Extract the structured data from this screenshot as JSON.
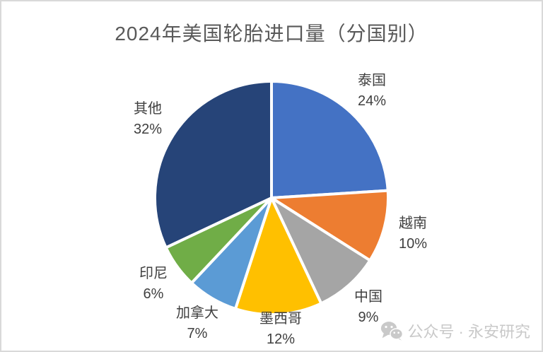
{
  "title": "2024年美国轮胎进口量（分国别）",
  "watermark": {
    "icon": "wechat-icon",
    "text": "公众号 · 永安研究"
  },
  "colors": {
    "title_text": "#595959",
    "label_text": "#3f3f3f",
    "watermark_gray": "#c9c9c9",
    "frame_border": "#d9d9d9",
    "slice_gap_stroke": "#ffffff"
  },
  "chart_data": {
    "type": "pie",
    "title": "2024年美国轮胎进口量（分国别）",
    "start_angle_deg": 0,
    "direction": "clockwise",
    "labels_position": "outside",
    "legend": "none",
    "unit": "percent",
    "segments": [
      {
        "label": "泰国",
        "value": 24,
        "percent_label": "24%",
        "color": "#4472C4"
      },
      {
        "label": "越南",
        "value": 10,
        "percent_label": "10%",
        "color": "#ED7D31"
      },
      {
        "label": "中国",
        "value": 9,
        "percent_label": "9%",
        "color": "#A5A5A5"
      },
      {
        "label": "墨西哥",
        "value": 12,
        "percent_label": "12%",
        "color": "#FFC000"
      },
      {
        "label": "加拿大",
        "value": 7,
        "percent_label": "7%",
        "color": "#5B9BD5"
      },
      {
        "label": "印尼",
        "value": 6,
        "percent_label": "6%",
        "color": "#70AD47"
      },
      {
        "label": "其他",
        "value": 32,
        "percent_label": "32%",
        "color": "#264478"
      }
    ]
  }
}
